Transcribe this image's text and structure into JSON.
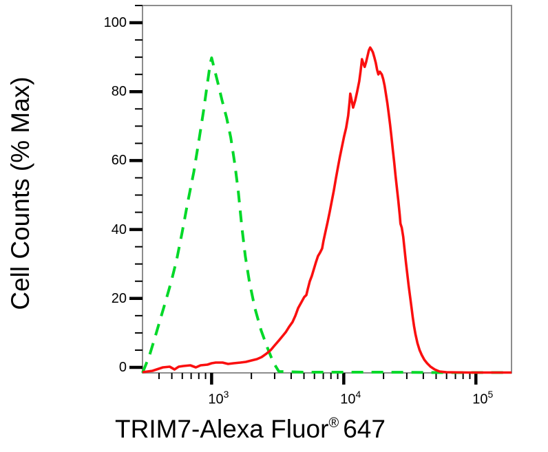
{
  "figure": {
    "ylabel": "Cell Counts (% Max)",
    "xlabel": {
      "text": "TRIM7-Alexa Fluor",
      "registered_mark": "®",
      "suffix": "647"
    }
  },
  "chart_data": {
    "type": "line",
    "subtype": "flow cytometry histogram overlay",
    "title": "",
    "xlabel": "TRIM7-Alexa Fluor® 647",
    "ylabel": "Cell Counts (% Max)",
    "x_scale": "log10",
    "x_range": [
      300,
      186000
    ],
    "y_range": [
      -1.6,
      105.0
    ],
    "grid": false,
    "legend": null,
    "colors": {
      "axis_frame": "#8c8c8c",
      "tick_marks": "#000000",
      "green_series": "#00d828",
      "red_series": "#fa0f0f"
    },
    "x_major_ticks": [
      {
        "value": 1000,
        "label_base": "10",
        "label_exp": "3"
      },
      {
        "value": 10000,
        "label_base": "10",
        "label_exp": "4"
      },
      {
        "value": 100000,
        "label_base": "10",
        "label_exp": "5"
      }
    ],
    "x_minor_ticks": [
      400,
      500,
      600,
      700,
      800,
      900,
      2000,
      3000,
      4000,
      5000,
      6000,
      7000,
      8000,
      9000,
      20000,
      30000,
      40000,
      50000,
      60000,
      70000,
      80000,
      90000
    ],
    "y_major_ticks": [
      {
        "value": 0,
        "label": "0"
      },
      {
        "value": 20,
        "label": "20"
      },
      {
        "value": 40,
        "label": "40"
      },
      {
        "value": 60,
        "label": "60"
      },
      {
        "value": 80,
        "label": "80"
      },
      {
        "value": 100,
        "label": "100"
      }
    ],
    "y_minor_ticks": [
      5,
      10,
      15,
      25,
      30,
      35,
      45,
      50,
      55,
      65,
      70,
      75,
      85,
      90,
      95,
      105
    ],
    "series": [
      {
        "name": "green dashed histogram",
        "color": "#00d828",
        "line_style": "dashed",
        "peak": {
          "x": 1000,
          "y": 89.8
        },
        "points": [
          [
            300,
            -1.6
          ],
          [
            337,
            3.2
          ],
          [
            371,
            8.4
          ],
          [
            408,
            13.8
          ],
          [
            449,
            19.2
          ],
          [
            494,
            24.8
          ],
          [
            543,
            31.1
          ],
          [
            598,
            39.1
          ],
          [
            658,
            47.7
          ],
          [
            733,
            56.7
          ],
          [
            797,
            65.3
          ],
          [
            866,
            74.1
          ],
          [
            931,
            82.6
          ],
          [
            977,
            88.2
          ],
          [
            1000,
            89.8
          ],
          [
            1049,
            86.6
          ],
          [
            1114,
            82.6
          ],
          [
            1197,
            77.6
          ],
          [
            1301,
            72.3
          ],
          [
            1397,
            66.7
          ],
          [
            1503,
            58.7
          ],
          [
            1596,
            50.7
          ],
          [
            1694,
            40.7
          ],
          [
            1798,
            32.3
          ],
          [
            1932,
            24.8
          ],
          [
            2124,
            17.2
          ],
          [
            2366,
            10.8
          ],
          [
            2636,
            5.8
          ],
          [
            2935,
            1.4
          ],
          [
            3228,
            -1.2
          ],
          [
            5000,
            -1.4
          ],
          [
            10000,
            -1.4
          ],
          [
            20000,
            -1.4
          ],
          [
            50000,
            -1.5
          ],
          [
            100000,
            -1.5
          ],
          [
            186000,
            -1.5
          ]
        ]
      },
      {
        "name": "red solid histogram",
        "color": "#fa0f0f",
        "line_style": "solid",
        "peak": {
          "x": 15849,
          "y": 92.8
        },
        "points": [
          [
            300,
            -1.4
          ],
          [
            357,
            -1.0
          ],
          [
            428,
            0.0
          ],
          [
            482,
            0.2
          ],
          [
            524,
            -0.6
          ],
          [
            564,
            0.2
          ],
          [
            612,
            0.4
          ],
          [
            690,
            0.6
          ],
          [
            760,
            0.0
          ],
          [
            826,
            0.6
          ],
          [
            931,
            0.8
          ],
          [
            1000,
            1.2
          ],
          [
            1074,
            1.4
          ],
          [
            1211,
            1.4
          ],
          [
            1333,
            1.0
          ],
          [
            1466,
            1.2
          ],
          [
            1652,
            1.4
          ],
          [
            1819,
            1.6
          ],
          [
            2000,
            2.0
          ],
          [
            2202,
            2.4
          ],
          [
            2394,
            3.0
          ],
          [
            2605,
            4.0
          ],
          [
            2799,
            5.0
          ],
          [
            3006,
            6.4
          ],
          [
            3228,
            7.8
          ],
          [
            3428,
            9.0
          ],
          [
            3639,
            10.2
          ],
          [
            3863,
            11.8
          ],
          [
            4101,
            13.2
          ],
          [
            4305,
            15.0
          ],
          [
            4519,
            17.2
          ],
          [
            4796,
            19.0
          ],
          [
            5023,
            20.4
          ],
          [
            5212,
            21.0
          ],
          [
            5335,
            22.6
          ],
          [
            5533,
            25.0
          ],
          [
            5729,
            26.5
          ],
          [
            5941,
            28.5
          ],
          [
            6161,
            30.5
          ],
          [
            6382,
            32.3
          ],
          [
            6620,
            33.3
          ],
          [
            6857,
            34.5
          ],
          [
            7024,
            36.7
          ],
          [
            7270,
            39.3
          ],
          [
            7542,
            42.1
          ],
          [
            7826,
            45.1
          ],
          [
            8108,
            48.1
          ],
          [
            8410,
            51.3
          ],
          [
            8710,
            54.7
          ],
          [
            9036,
            58.1
          ],
          [
            9354,
            61.1
          ],
          [
            9705,
            64.1
          ],
          [
            10069,
            67.1
          ],
          [
            10423,
            69.5
          ],
          [
            10814,
            73.1
          ],
          [
            11076,
            77.1
          ],
          [
            11210,
            79.4
          ],
          [
            11492,
            77.4
          ],
          [
            11764,
            75.4
          ],
          [
            12194,
            77.4
          ],
          [
            12630,
            80.0
          ],
          [
            13095,
            83.0
          ],
          [
            13414,
            86.0
          ],
          [
            13734,
            89.4
          ],
          [
            14064,
            88.2
          ],
          [
            14394,
            87.2
          ],
          [
            14760,
            88.6
          ],
          [
            15105,
            90.2
          ],
          [
            15496,
            92.0
          ],
          [
            15849,
            92.8
          ],
          [
            16218,
            92.2
          ],
          [
            16634,
            91.4
          ],
          [
            17022,
            90.0
          ],
          [
            17458,
            88.4
          ],
          [
            17861,
            86.4
          ],
          [
            18281,
            85.0
          ],
          [
            18745,
            85.8
          ],
          [
            19409,
            85.0
          ],
          [
            19905,
            83.6
          ],
          [
            20370,
            81.8
          ],
          [
            20845,
            79.4
          ],
          [
            21380,
            76.6
          ],
          [
            21878,
            73.7
          ],
          [
            22438,
            70.3
          ],
          [
            22957,
            66.9
          ],
          [
            23496,
            63.3
          ],
          [
            24099,
            59.5
          ],
          [
            24660,
            55.5
          ],
          [
            25293,
            51.7
          ],
          [
            25880,
            48.3
          ],
          [
            26546,
            44.1
          ],
          [
            26853,
            41.7
          ],
          [
            27480,
            40.5
          ],
          [
            28184,
            37.9
          ],
          [
            28840,
            34.3
          ],
          [
            29512,
            30.7
          ],
          [
            30270,
            27.1
          ],
          [
            30974,
            23.7
          ],
          [
            31696,
            20.8
          ],
          [
            32509,
            17.6
          ],
          [
            33266,
            14.6
          ],
          [
            34041,
            12.0
          ],
          [
            34914,
            9.6
          ],
          [
            36141,
            7.0
          ],
          [
            37497,
            5.0
          ],
          [
            38905,
            3.6
          ],
          [
            40738,
            2.2
          ],
          [
            42758,
            1.2
          ],
          [
            45394,
            0.2
          ],
          [
            48753,
            -0.6
          ],
          [
            53088,
            -1.2
          ],
          [
            59841,
            -1.4
          ],
          [
            87700,
            -1.5
          ],
          [
            186000,
            -1.5
          ]
        ]
      }
    ]
  }
}
